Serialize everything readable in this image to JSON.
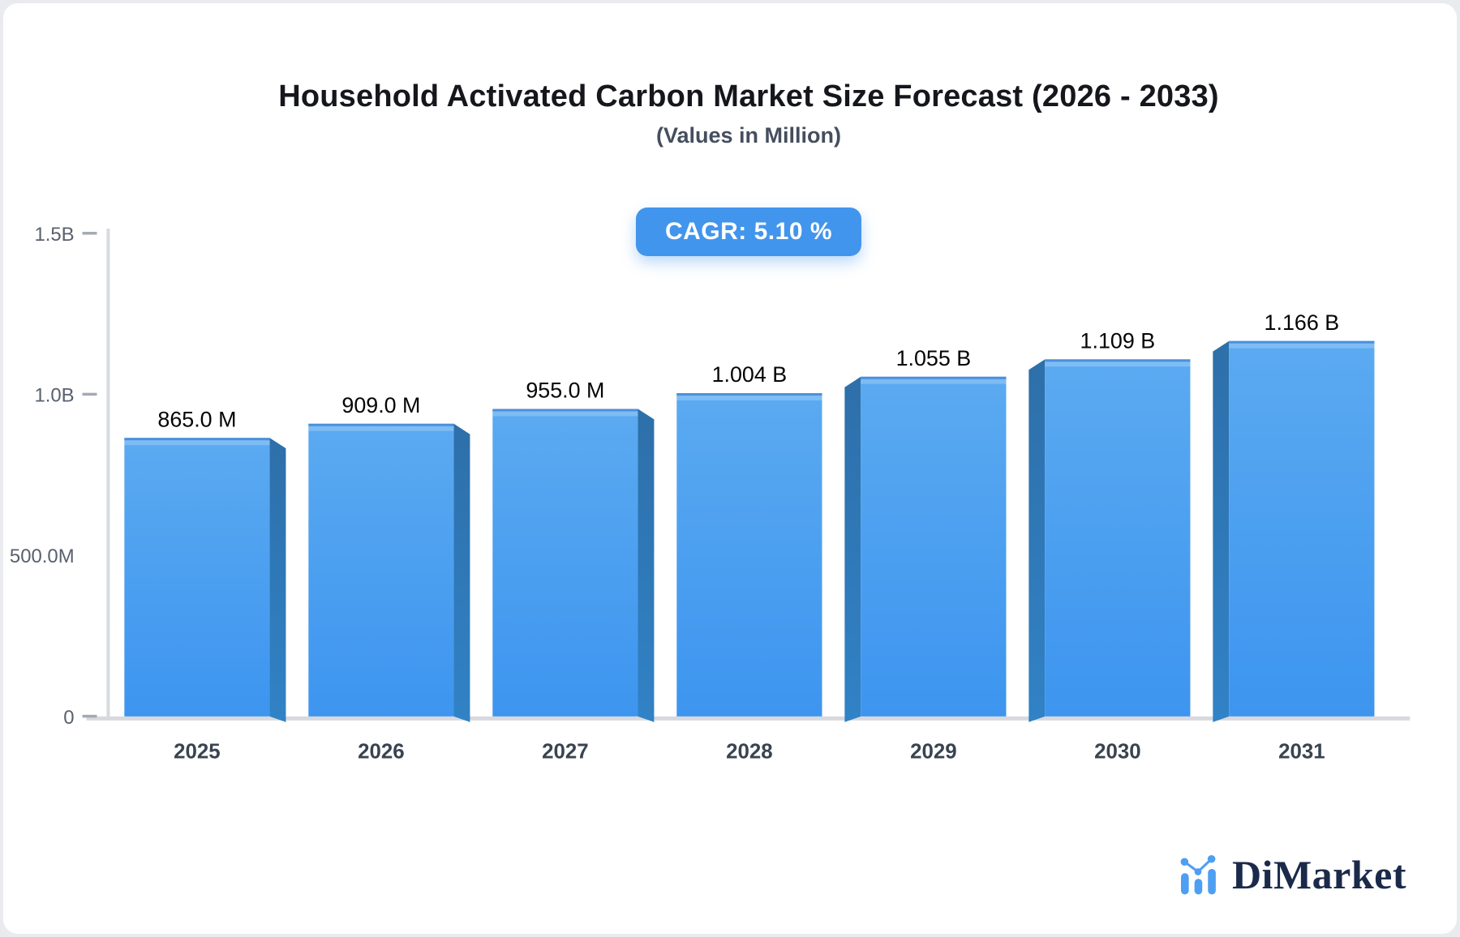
{
  "header": {
    "title": "Household Activated Carbon Market Size Forecast (2026 - 2033)",
    "subtitle": "(Values in Million)",
    "cagr_label": "CAGR: 5.10 %"
  },
  "footer_logo": {
    "name": "DiMarket"
  },
  "colors": {
    "badge_blue": "#4295ec",
    "bar_face_top": "#5baaf1",
    "bar_face_bottom": "#3d95ef",
    "bar_side_top": "#2d6fa9",
    "bar_side_bottom": "#3182c6",
    "bar_top_edge": "#4a90dc",
    "axis_line": "#d7d9de",
    "tick_dash": "#a4aab4",
    "tick_label": "#59606d",
    "x_label": "#3a4350",
    "value_label": "#050505",
    "logo_navy": "#1b2a4a",
    "logo_blue": "#4e9ff2"
  },
  "chart_data": {
    "type": "bar",
    "title": "Household Activated Carbon Market Size Forecast (2026 - 2033)",
    "subtitle": "(Values in Million)",
    "cagr": "5.10 %",
    "unit": "USD Million",
    "categories": [
      "2025",
      "2026",
      "2027",
      "2028",
      "2029",
      "2030",
      "2031"
    ],
    "values_millions": [
      865,
      909,
      955,
      1004,
      1055,
      1109,
      1166
    ],
    "bar_labels": [
      "865.0 M",
      "909.0 M",
      "955.0 M",
      "1.004 B",
      "1.055 B",
      "1.109 B",
      "1.166 B"
    ],
    "y_axis": {
      "range_millions": [
        0,
        1500
      ],
      "ticks": [
        {
          "label": "1.5B",
          "value_millions": 1500,
          "dash": true
        },
        {
          "label": "1.0B",
          "value_millions": 1000,
          "dash": true
        },
        {
          "label": "500.0M",
          "value_millions": 500,
          "dash": false
        },
        {
          "label": "0",
          "value_millions": 0,
          "dash": true
        }
      ]
    },
    "grid": false,
    "legend": false
  }
}
